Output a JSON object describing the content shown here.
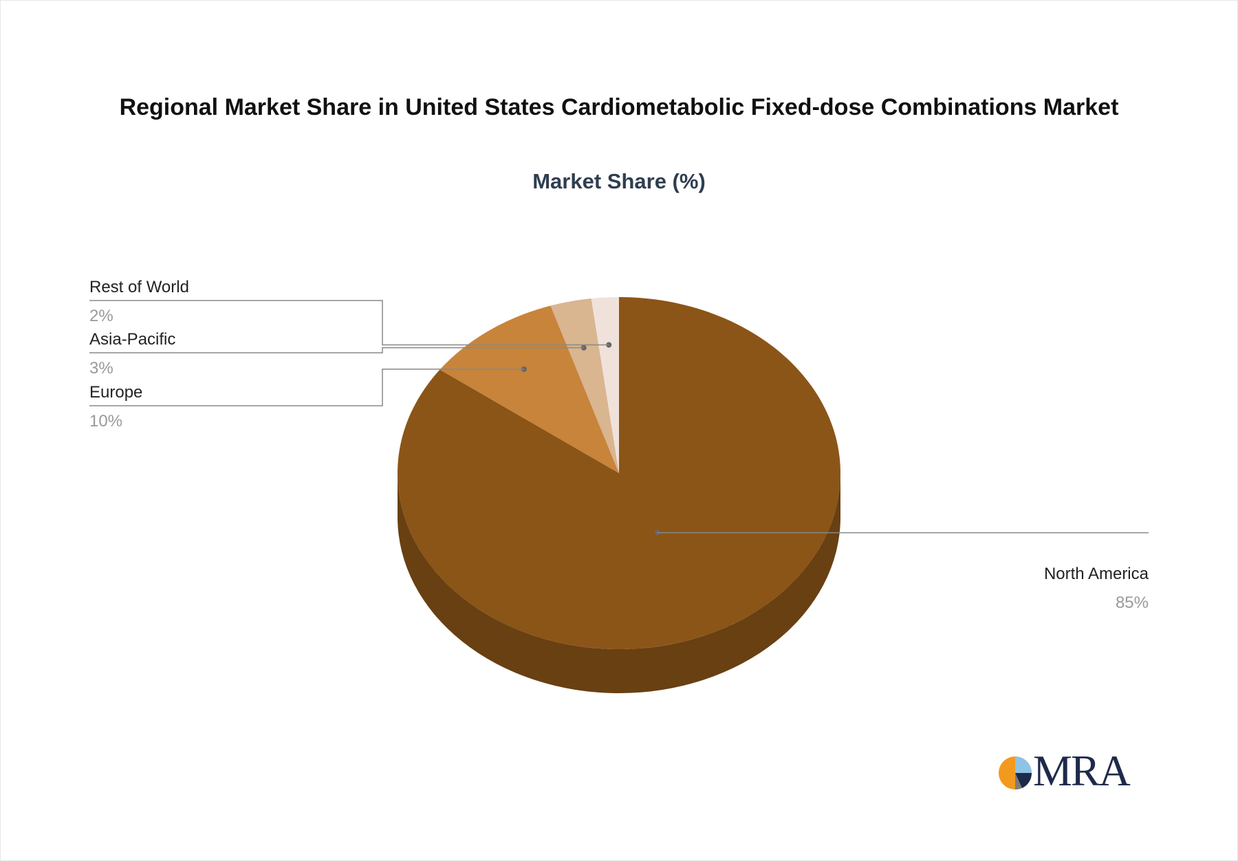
{
  "chart_data": {
    "type": "pie",
    "title": "Regional Market Share in United States Cardiometabolic Fixed-dose Combinations Market",
    "subtitle": "Market Share (%)",
    "slices": [
      {
        "label": "North America",
        "value": 85,
        "value_label": "85%",
        "color": "#8B5518"
      },
      {
        "label": "Europe",
        "value": 10,
        "value_label": "10%",
        "color": "#C8843A"
      },
      {
        "label": "Asia-Pacific",
        "value": 3,
        "value_label": "3%",
        "color": "#D9B590"
      },
      {
        "label": "Rest of World",
        "value": 2,
        "value_label": "2%",
        "color": "#F0E2DA"
      }
    ]
  },
  "logo": {
    "text": "MRA"
  }
}
